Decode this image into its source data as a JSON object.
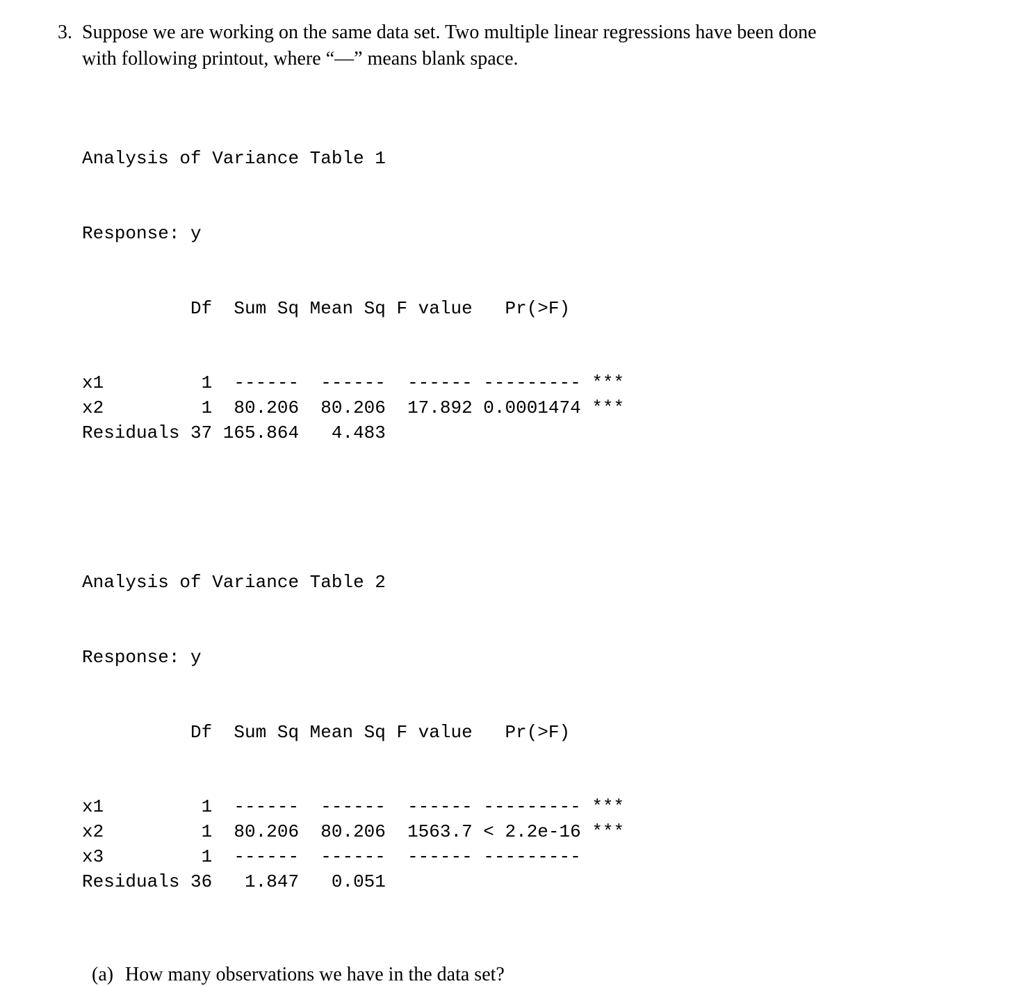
{
  "question": {
    "number": "3.",
    "text_line1": "Suppose we are working on the same data set.  Two multiple linear regressions have been done",
    "text_line2": "with following printout, where “—” means blank space."
  },
  "anova1": {
    "title": "Analysis of Variance Table 1",
    "response": "Response: y",
    "header": {
      "blank": "          ",
      "df": "Df",
      "sumsq": "Sum Sq",
      "meansq": "Mean Sq",
      "fvalue": "F value",
      "prf": "Pr(>F)"
    },
    "rows": [
      {
        "name": "x1",
        "df": "1",
        "sumsq": "------",
        "meansq": "------",
        "fvalue": "------",
        "prf": "---------",
        "signif": "***"
      },
      {
        "name": "x2",
        "df": "1",
        "sumsq": "80.206",
        "meansq": "80.206",
        "fvalue": "17.892",
        "prf": "0.0001474",
        "signif": "***"
      },
      {
        "name": "Residuals",
        "df": "37",
        "sumsq": "165.864",
        "meansq": "4.483",
        "fvalue": "",
        "prf": "",
        "signif": ""
      }
    ]
  },
  "anova2": {
    "title": "Analysis of Variance Table 2",
    "response": "Response: y",
    "header": {
      "blank": "          ",
      "df": "Df",
      "sumsq": "Sum Sq",
      "meansq": "Mean Sq",
      "fvalue": "F value",
      "prf": "Pr(>F)"
    },
    "rows": [
      {
        "name": "x1",
        "df": "1",
        "sumsq": "------",
        "meansq": "------",
        "fvalue": "------",
        "prf": "---------",
        "signif": "***"
      },
      {
        "name": "x2",
        "df": "1",
        "sumsq": "80.206",
        "meansq": "80.206",
        "fvalue": "1563.7",
        "prf": "< 2.2e-16",
        "signif": "***"
      },
      {
        "name": "x3",
        "df": "1",
        "sumsq": "------",
        "meansq": "------",
        "fvalue": "------",
        "prf": "---------",
        "signif": ""
      },
      {
        "name": "Residuals",
        "df": "36",
        "sumsq": "1.847",
        "meansq": "0.051",
        "fvalue": "",
        "prf": "",
        "signif": ""
      }
    ]
  },
  "subquestion": {
    "label": "(a)",
    "text": "How many observations we have in the data set?"
  },
  "style": {
    "serif_font_size_pt": 21,
    "mono_font_size_pt": 19,
    "text_color": "#000000",
    "background_color": "#ffffff",
    "col_widths": {
      "name": 10,
      "df": 2,
      "sumsq": 8,
      "meansq": 7,
      "fvalue": 8,
      "prf": 10,
      "signif": 4
    }
  }
}
